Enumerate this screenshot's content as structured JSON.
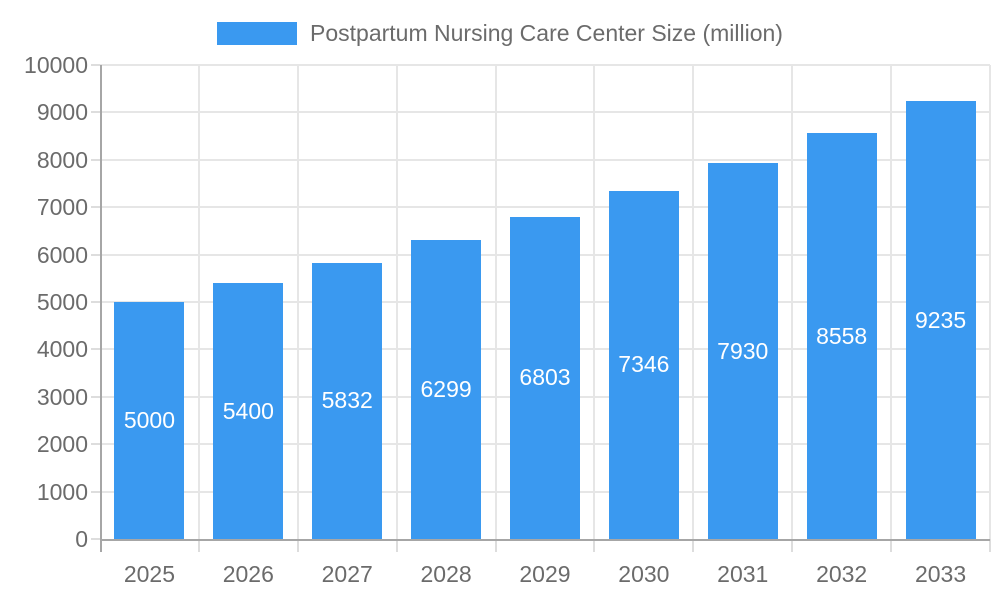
{
  "chart_data": {
    "type": "bar",
    "title": "Postpartum Nursing Care Center Size (million)",
    "legend": [
      "Postpartum Nursing Care Center Size (million)"
    ],
    "legend_position": "top",
    "categories": [
      "2025",
      "2026",
      "2027",
      "2028",
      "2029",
      "2030",
      "2031",
      "2032",
      "2033"
    ],
    "values": [
      5000,
      5400,
      5832,
      6299,
      6803,
      7346,
      7930,
      8558,
      9235
    ],
    "xlabel": "",
    "ylabel": "",
    "ylim": [
      0,
      10000
    ],
    "y_ticks": [
      0,
      1000,
      2000,
      3000,
      4000,
      5000,
      6000,
      7000,
      8000,
      9000,
      10000
    ],
    "grid": true,
    "value_labels": "inside-center",
    "colors": {
      "bar": "#3a99f0",
      "bar_value_label": "#ffffff",
      "axis": "#a6a6a6",
      "gridline": "#e6e6e6",
      "tick": "#dddddd",
      "text": "#6b6b6b",
      "background": "#ffffff"
    }
  }
}
